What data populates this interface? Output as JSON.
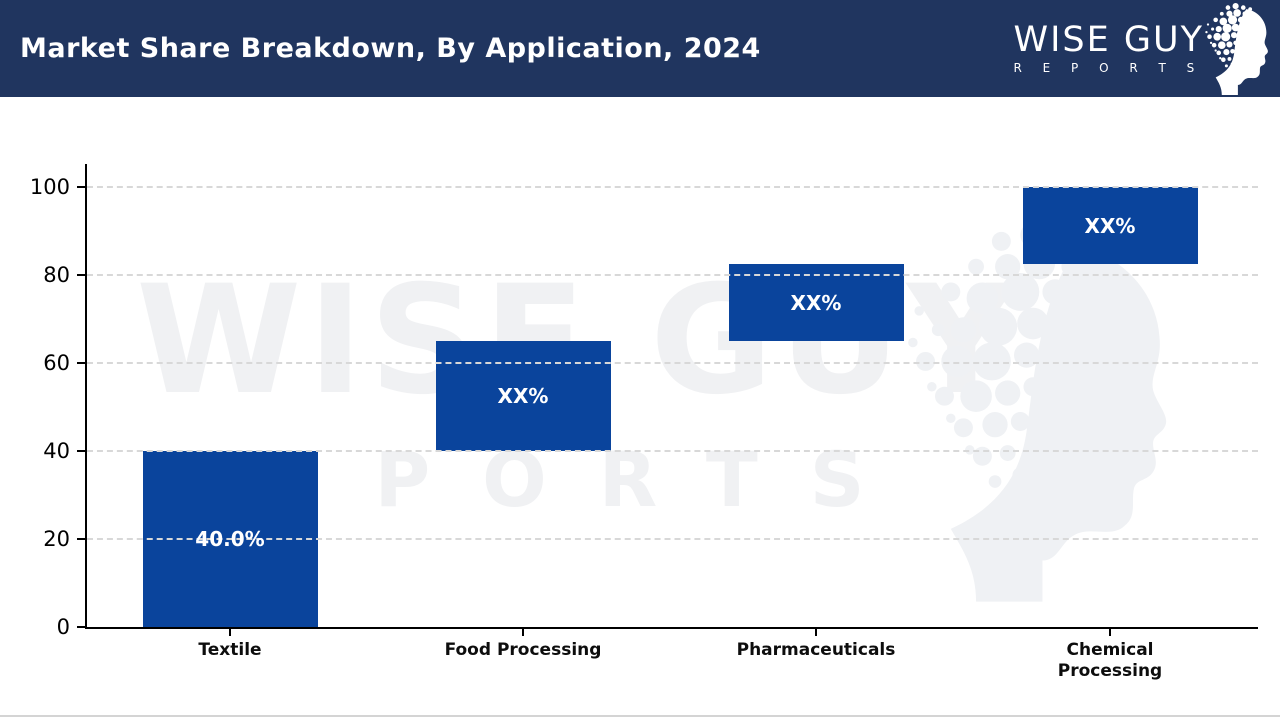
{
  "header": {
    "title": "Market Share Breakdown, By Application, 2024",
    "logo_line1": "WISE GUY",
    "logo_line2": "R E P O R T S",
    "bg_color": "#20355f"
  },
  "watermark": {
    "line1": "WISE GUY",
    "line2": "REPORTS"
  },
  "chart_data": {
    "type": "bar",
    "subtype": "waterfall",
    "title": "Market Share Breakdown, By Application, 2024",
    "categories": [
      "Textile",
      "Food Processing",
      "Pharmaceuticals",
      "Chemical Processing"
    ],
    "segments": [
      {
        "category": "Textile",
        "label": "40.0%",
        "start": 0,
        "end": 40
      },
      {
        "category": "Food Processing",
        "label": "XX%",
        "start": 40,
        "end": 65
      },
      {
        "category": "Pharmaceuticals",
        "label": "XX%",
        "start": 65,
        "end": 82.5
      },
      {
        "category": "Chemical Processing",
        "label": "XX%",
        "start": 82.5,
        "end": 100
      }
    ],
    "y_ticks": [
      0,
      20,
      40,
      60,
      80,
      100
    ],
    "ylim": [
      0,
      104
    ],
    "xlabel": "",
    "ylabel": "",
    "grid": "horizontal-dashed",
    "legend": "none",
    "bar_color": "#0a449c",
    "grid_color": "#d8d8d8",
    "axis_color": "#000000",
    "value_label_color": "#ffffff"
  }
}
